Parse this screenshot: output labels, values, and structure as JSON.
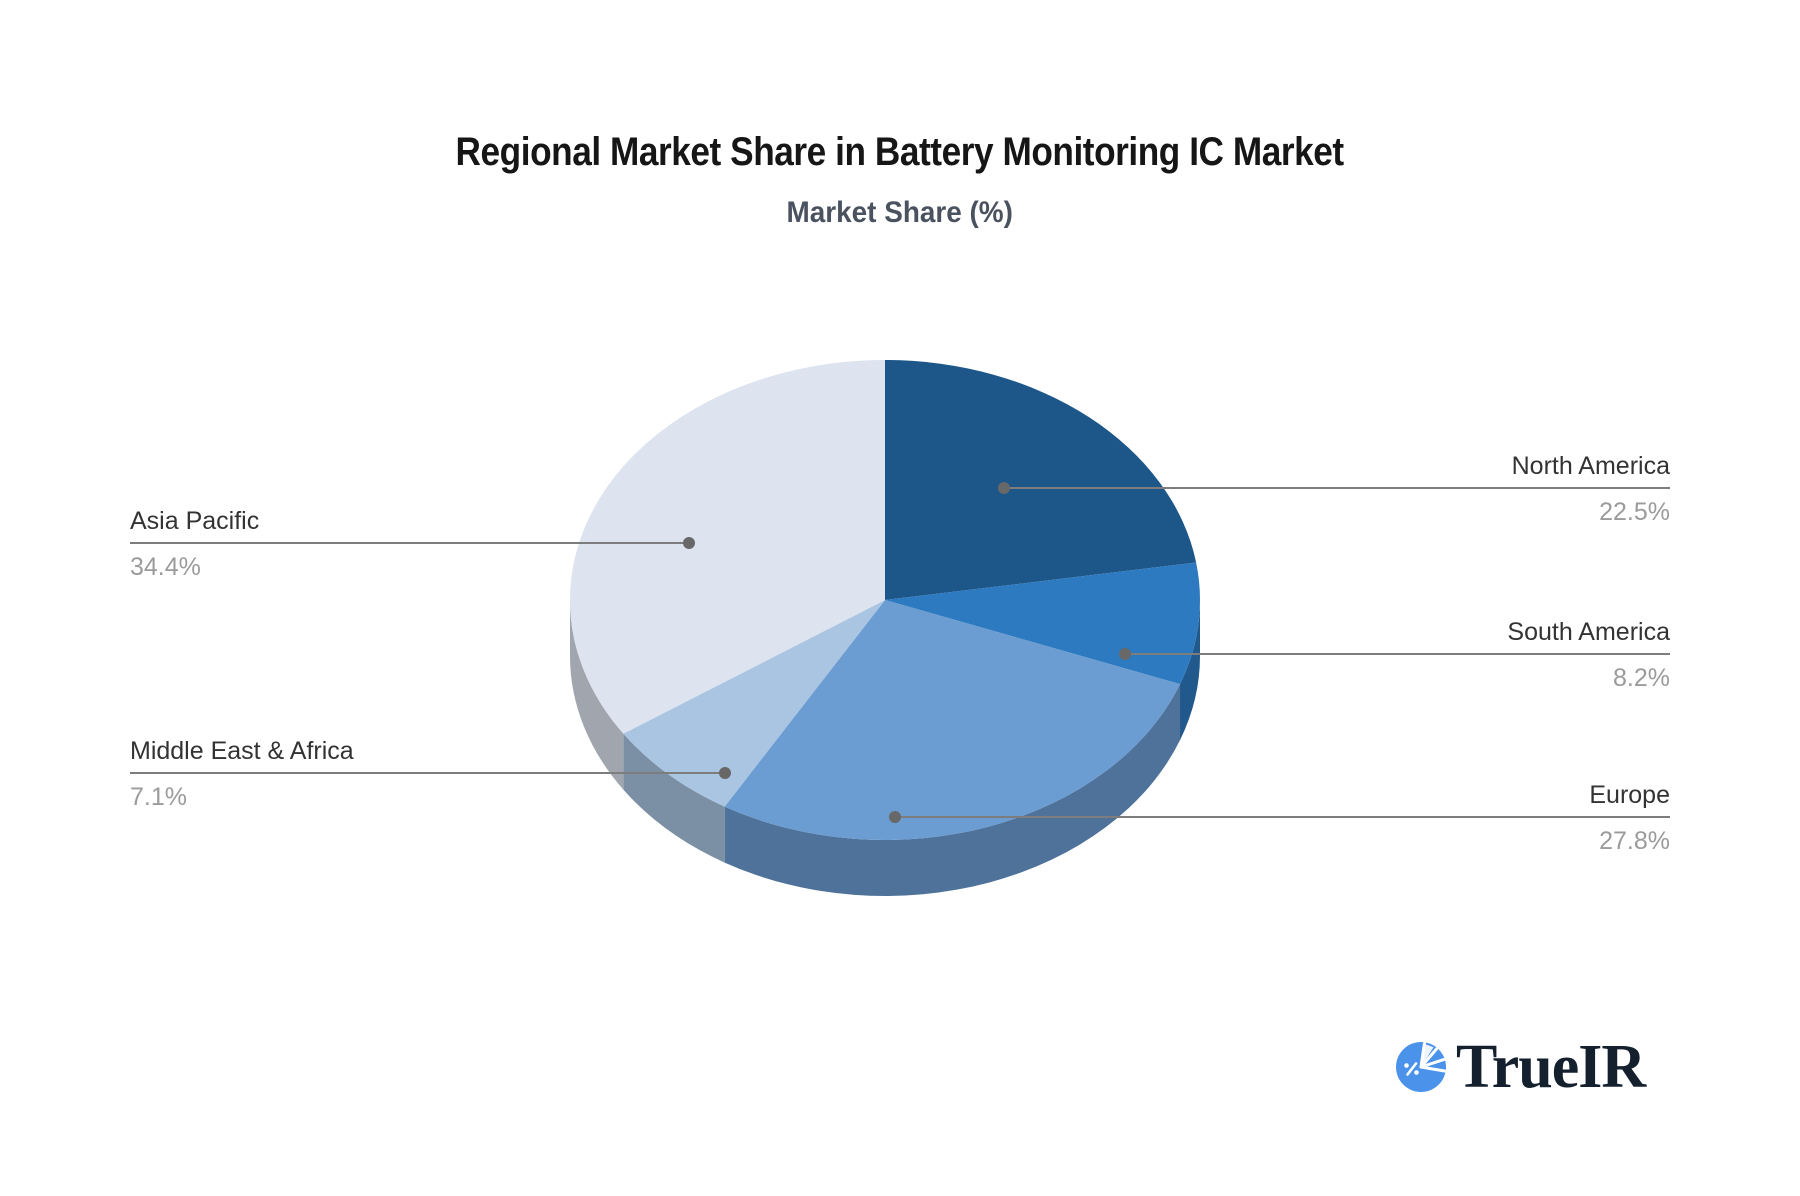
{
  "title": "Regional Market Share in Battery Monitoring IC Market",
  "subtitle": "Market Share (%)",
  "logo": {
    "text": "TrueIR",
    "icon": "pie-chart-percent-icon",
    "icon_color": "#4b93ea",
    "text_color": "#15202e"
  },
  "chart_data": {
    "type": "pie",
    "style": "3d",
    "title": "Regional Market Share in Battery Monitoring IC Market",
    "subtitle": "Market Share (%)",
    "legend": "none",
    "labels_position": "outside-callout",
    "direction": "clockwise",
    "start_angle_deg": 0,
    "labels": [
      "North America",
      "South America",
      "Europe",
      "Middle East & Africa",
      "Asia Pacific"
    ],
    "values": [
      22.5,
      8.2,
      27.8,
      7.1,
      34.4
    ],
    "value_labels": [
      "22.5%",
      "8.2%",
      "27.8%",
      "7.1%",
      "34.4%"
    ],
    "colors": [
      "#1d5789",
      "#2d7ac1",
      "#6b9cd2",
      "#a9c5e2",
      "#dde4ef"
    ],
    "connector_color": "#7d7d7d",
    "label_text_color": "#333333",
    "value_text_color": "#9b9b9b"
  }
}
